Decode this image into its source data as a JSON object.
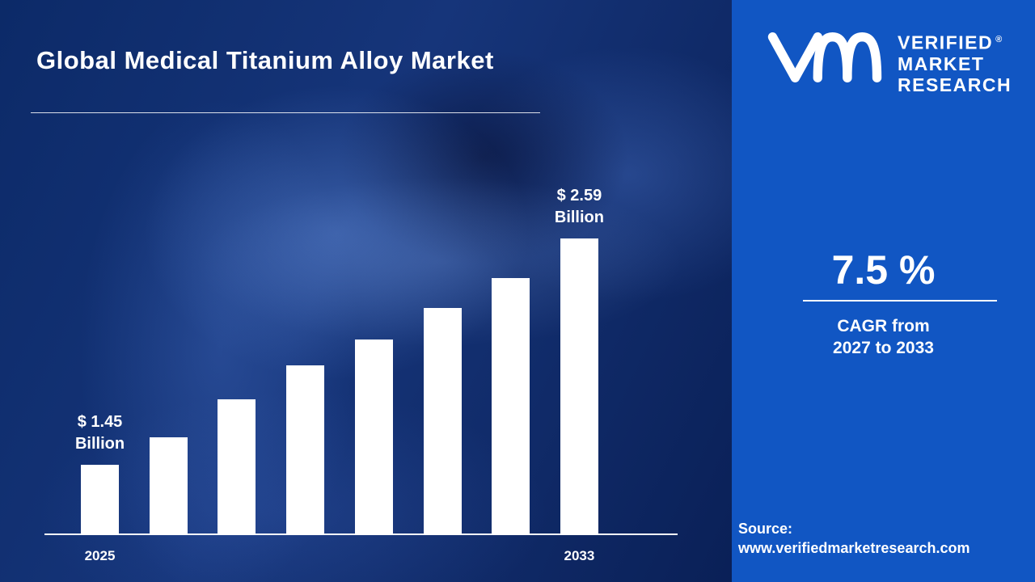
{
  "header": {
    "title": "Global Medical Titanium Alloy Market"
  },
  "chart_data": {
    "type": "bar",
    "categories": [
      "2025",
      "",
      "",
      "",
      "",
      "",
      "",
      "2033"
    ],
    "values": [
      1.45,
      1.59,
      1.78,
      1.95,
      2.08,
      2.24,
      2.39,
      2.59
    ],
    "unit": "USD Billion",
    "ylim": [
      1.45,
      2.59
    ],
    "title": "Global Medical Titanium Alloy Market",
    "xlabel": "",
    "ylabel": "",
    "grid": false,
    "legend": false,
    "bar_color": "#ffffff",
    "annotations": [
      {
        "bar_index": 0,
        "line1": "$ 1.45",
        "line2": "Billion"
      },
      {
        "bar_index": 7,
        "line1": "$ 2.59",
        "line2": "Billion"
      }
    ]
  },
  "sidebar": {
    "logo": {
      "mark": "vm-monogram",
      "brand_lines": [
        "VERIFIED",
        "MARKET",
        "RESEARCH"
      ],
      "registered_mark": "®"
    },
    "cagr": {
      "value": "7.5 %",
      "line1": "CAGR from",
      "line2": "2027 to 2033"
    },
    "source": {
      "label": "Source:",
      "url": "www.verifiedmarketresearch.com"
    }
  },
  "colors": {
    "left_background": "#0d2a67",
    "panel_blue": "#1156c3",
    "bar": "#ffffff",
    "text": "#ffffff"
  }
}
